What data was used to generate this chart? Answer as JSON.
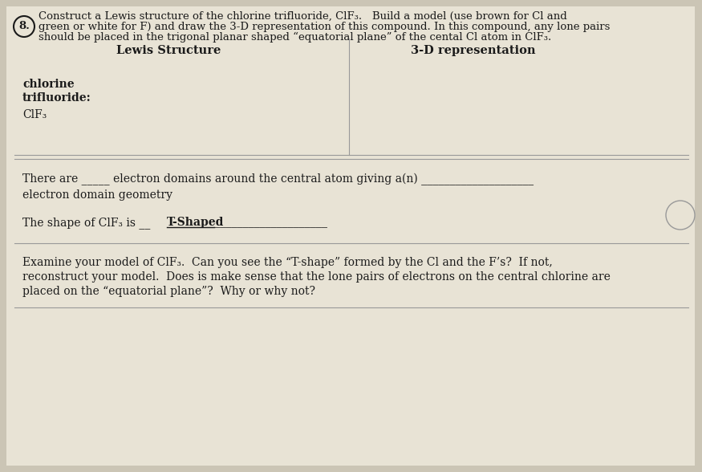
{
  "background_color": "#cbc5b5",
  "paper_color": "#e8e3d5",
  "question_number": "8.",
  "lewis_structure_label": "Lewis Structure",
  "three_d_label": "3-D representation",
  "compound_label_line1": "chlorine",
  "compound_label_line2": "trifluoride:",
  "compound_formula": "ClF₃",
  "blank_line1": "There are _____ electron domains around the central atom giving a(n) ____________________",
  "blank_line2": "electron domain geometry",
  "shape_prefix": "The shape of ClF₃ is __",
  "shape_answer": "T-Shaped",
  "shape_suffix": "____________________",
  "examine_text_line1": "Examine your model of ClF₃.  Can you see the “T-shape” formed by the Cl and the F’s?  If not,",
  "examine_text_line2": "reconstruct your model.  Does is make sense that the lone pairs of electrons on the central chlorine are",
  "examine_text_line3": "placed on the “equatorial plane”?  Why or why not?",
  "header_line1": "Construct a Lewis structure of the chlorine trifluoride, ClF₃.   Build a model (use brown for Cl and",
  "header_line2": "green or white for F) and draw the 3-D representation of this compound. In this compound, any lone pairs",
  "header_line3": "should be placed in the trigonal planar shaped “equatorial plane” of the cental Cl atom in ClF₃.",
  "font_size_header": 9.5,
  "font_size_body": 10,
  "font_size_label": 10.5,
  "divider_color": "#999999",
  "text_color": "#1a1a1a"
}
